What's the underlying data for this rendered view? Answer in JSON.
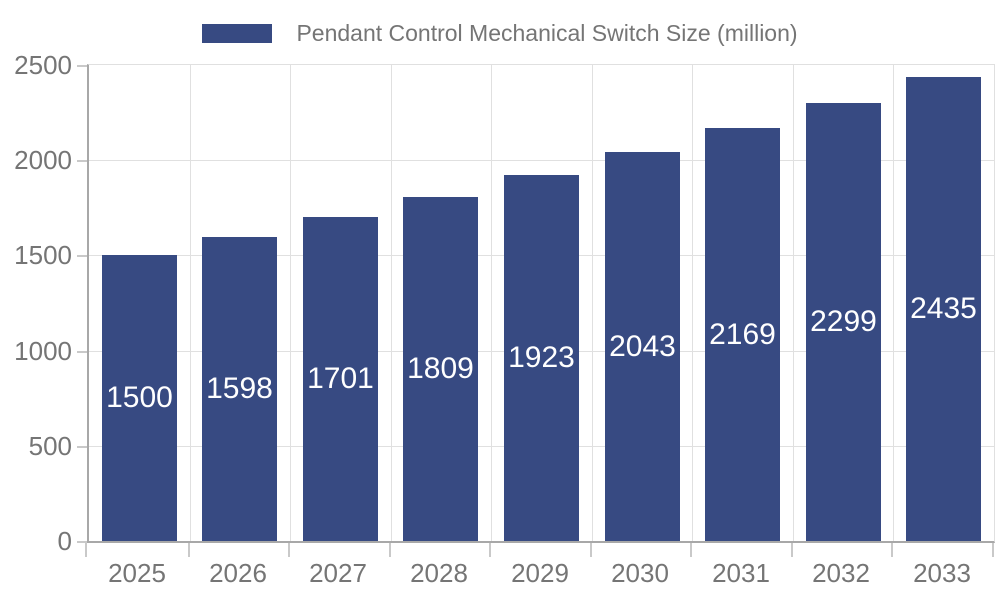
{
  "chart_data": {
    "type": "bar",
    "title": "Pendant Control Mechanical Switch Size (million)",
    "legend": {
      "label": "Pendant Control Mechanical Switch Size (million)",
      "position": "top-center"
    },
    "categories": [
      "2025",
      "2026",
      "2027",
      "2028",
      "2029",
      "2030",
      "2031",
      "2032",
      "2033"
    ],
    "values": [
      1500,
      1598,
      1701,
      1809,
      1923,
      2043,
      2169,
      2299,
      2435
    ],
    "xlabel": "",
    "ylabel": "",
    "ylim": [
      0,
      2500
    ],
    "yticks": [
      0,
      500,
      1000,
      1500,
      2000,
      2500
    ],
    "grid": "horizontal-and-vertical",
    "colors": {
      "bar": "#374a82",
      "bar_value_label": "#ffffff",
      "axis_text": "#757575",
      "legend_text": "#757575",
      "gridline": "#e0e0e0",
      "axis_line": "#a8a8a8",
      "background": "#ffffff"
    }
  }
}
